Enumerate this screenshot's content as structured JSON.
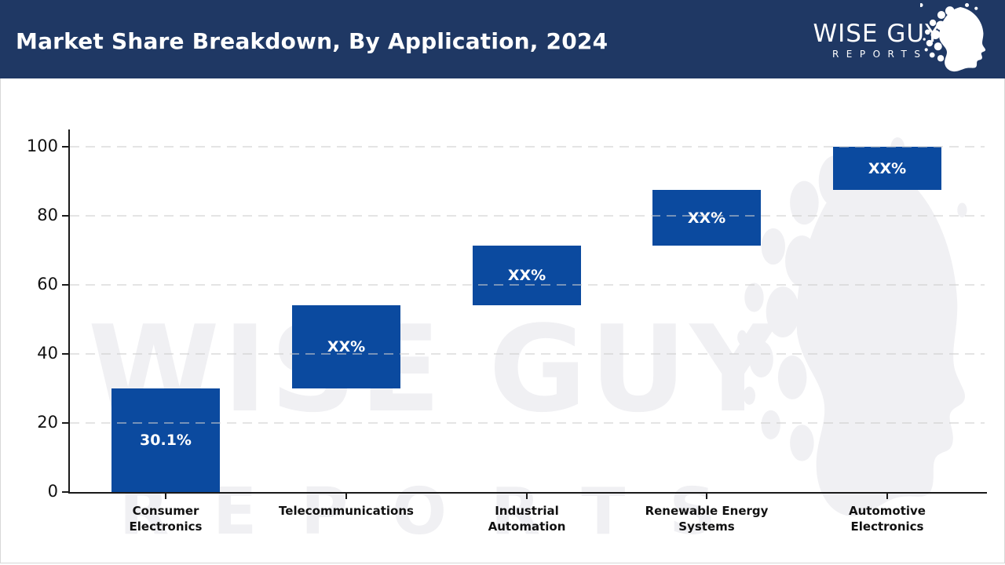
{
  "header": {
    "title": "Market Share Breakdown, By Application, 2024",
    "logo": {
      "line1": "WISE GUY",
      "line2": "REPORTS"
    }
  },
  "watermark": {
    "line1": "WISE GUY",
    "line2": "REPORTS"
  },
  "chart_data": {
    "type": "bar",
    "subtype": "waterfall",
    "title": "Market Share Breakdown, By Application, 2024",
    "categories": [
      "Consumer\nElectronics",
      "Telecommunications",
      "Industrial\nAutomation",
      "Renewable Energy\nSystems",
      "Automotive\nElectronics"
    ],
    "segments": [
      {
        "category": "Consumer Electronics",
        "start": 0,
        "end": 30.1,
        "value": 30.1,
        "display": "30.1%"
      },
      {
        "category": "Telecommunications",
        "start": 30.1,
        "end": 54.0,
        "value": 23.9,
        "display": "XX%"
      },
      {
        "category": "Industrial Automation",
        "start": 54.0,
        "end": 71.3,
        "value": 17.3,
        "display": "XX%"
      },
      {
        "category": "Renewable Energy Systems",
        "start": 71.3,
        "end": 87.5,
        "value": 16.2,
        "display": "XX%"
      },
      {
        "category": "Automotive Electronics",
        "start": 87.5,
        "end": 100,
        "value": 12.5,
        "display": "XX%"
      }
    ],
    "y_ticks": [
      0,
      20,
      40,
      60,
      80,
      100
    ],
    "ylim": [
      0,
      105
    ],
    "xlabel": "",
    "ylabel": "",
    "grid": "horizontal-dashed",
    "legend": "none"
  },
  "colors": {
    "header_bg": "#1f3864",
    "bar": "#0b4a9f",
    "bar_label": "#ffffff",
    "axis": "#1a1a1a",
    "grid": "#d9d9d9",
    "watermark": "#f0f0f3",
    "page_bg": "#ffffff"
  }
}
